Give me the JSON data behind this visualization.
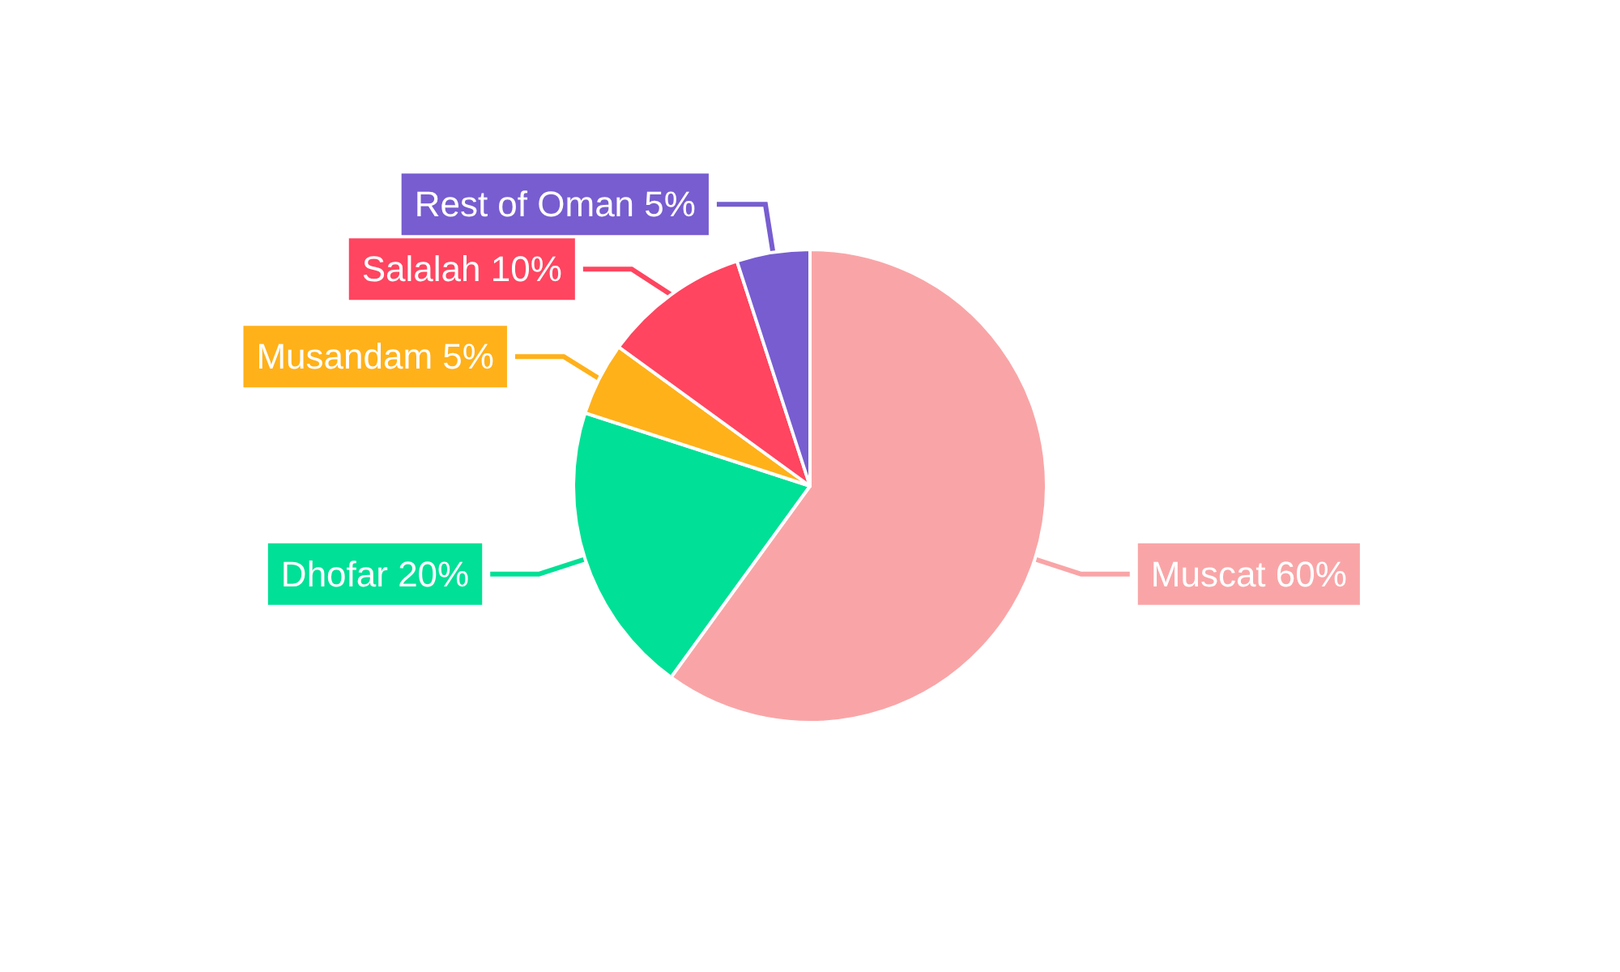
{
  "chart_data": {
    "type": "pie",
    "categories": [
      "Muscat",
      "Dhofar",
      "Musandam",
      "Salalah",
      "Rest of Oman"
    ],
    "values": [
      60,
      20,
      5,
      10,
      5
    ],
    "colors": [
      "#f9a5a7",
      "#00e096",
      "#ffb11a",
      "#ff4560",
      "#775dd0"
    ],
    "value_labels": [
      "60%",
      "20%",
      "5%",
      "10%",
      "5%"
    ],
    "legend": false
  }
}
